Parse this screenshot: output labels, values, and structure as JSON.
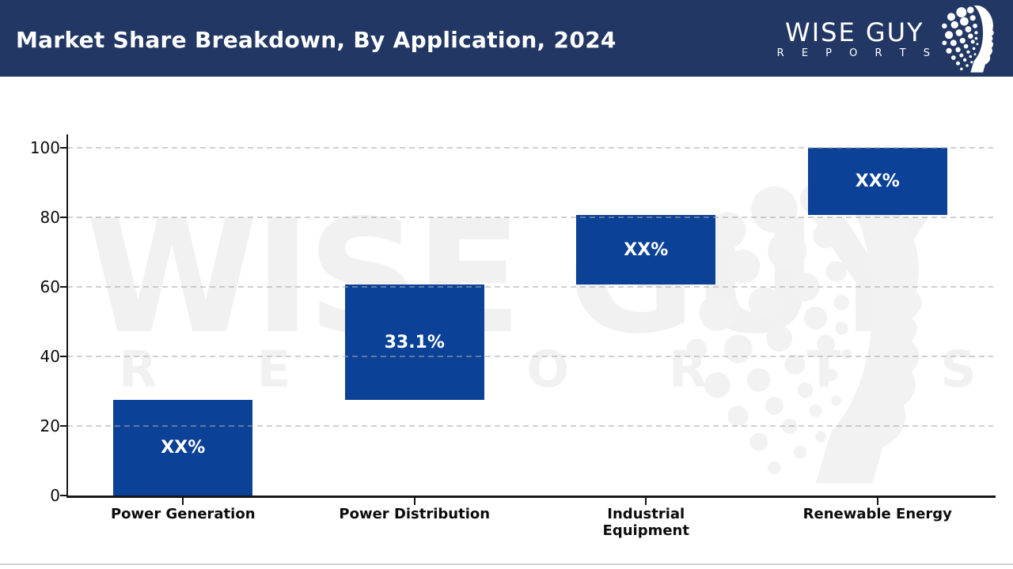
{
  "header": {
    "title": "Market Share Breakdown, By Application, 2024",
    "logo": {
      "line1": "WISE GUY",
      "line2": "R E P O R T S"
    }
  },
  "watermark": {
    "line1": "WISE GUY",
    "line2": "R E P O R T S"
  },
  "colors": {
    "header_bg": "#223763",
    "bar": "#0b4196",
    "bar_label": "#ffffff",
    "grid": "rgba(170,170,170,0.55)",
    "watermark": "#f1f1f1"
  },
  "chart_data": {
    "type": "bar",
    "variant": "waterfall-floating-bars",
    "title": "Market Share Breakdown, By Application, 2024",
    "xlabel": "",
    "ylabel": "",
    "ylim": [
      0,
      100
    ],
    "yticks": [
      0,
      20,
      40,
      60,
      80,
      100
    ],
    "grid": "dashed-horizontal",
    "legend": "none",
    "categories": [
      "Power Generation",
      "Power Distribution",
      "Industrial Equipment",
      "Renewable Energy"
    ],
    "category_label_lines": [
      [
        "Power Generation"
      ],
      [
        "Power Distribution"
      ],
      [
        "Industrial",
        "Equipment"
      ],
      [
        "Renewable Energy"
      ]
    ],
    "segments": [
      {
        "category": "Power Generation",
        "start": 0,
        "end": 27.5,
        "label": "XX%"
      },
      {
        "category": "Power Distribution",
        "start": 27.5,
        "end": 60.6,
        "label": "33.1%"
      },
      {
        "category": "Industrial Equipment",
        "start": 60.6,
        "end": 80.7,
        "label": "XX%"
      },
      {
        "category": "Renewable Energy",
        "start": 80.7,
        "end": 100,
        "label": "XX%"
      }
    ]
  }
}
